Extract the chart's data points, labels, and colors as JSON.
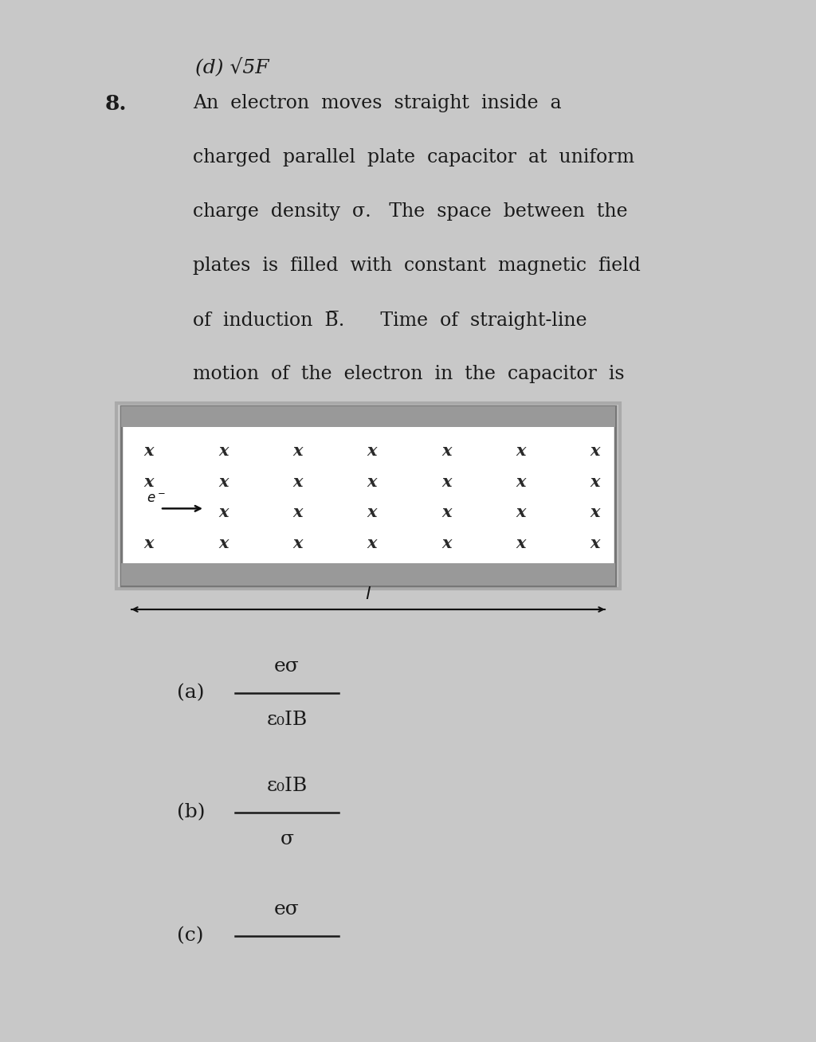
{
  "page_bg": "#c8c8c8",
  "white_bg": "#e8e8e8",
  "text_color": "#1a1a1a",
  "title_d": "(d) √5F",
  "q_number": "8.",
  "line1": "An  electron  moves  straight  inside  a",
  "line2": "charged  parallel  plate  capacitor  at  uniform",
  "line3": "charge  density  σ.   The  space  between  the",
  "line4": "plates  is  filled  with  constant  magnetic  field",
  "line5": "of  induction  B̅.      Time  of  straight-line",
  "line6": "motion  of  the  electron  in  the  capacitor  is",
  "opt_a_n": "eσ",
  "opt_a_d": "ε₀IB",
  "opt_b_n": "ε₀IB",
  "opt_b_d": "σ",
  "opt_c_n": "eσ",
  "plate_color": "#999999",
  "border_color": "#777777",
  "cross_color": "#2a2a2a",
  "arrow_color": "#111111"
}
